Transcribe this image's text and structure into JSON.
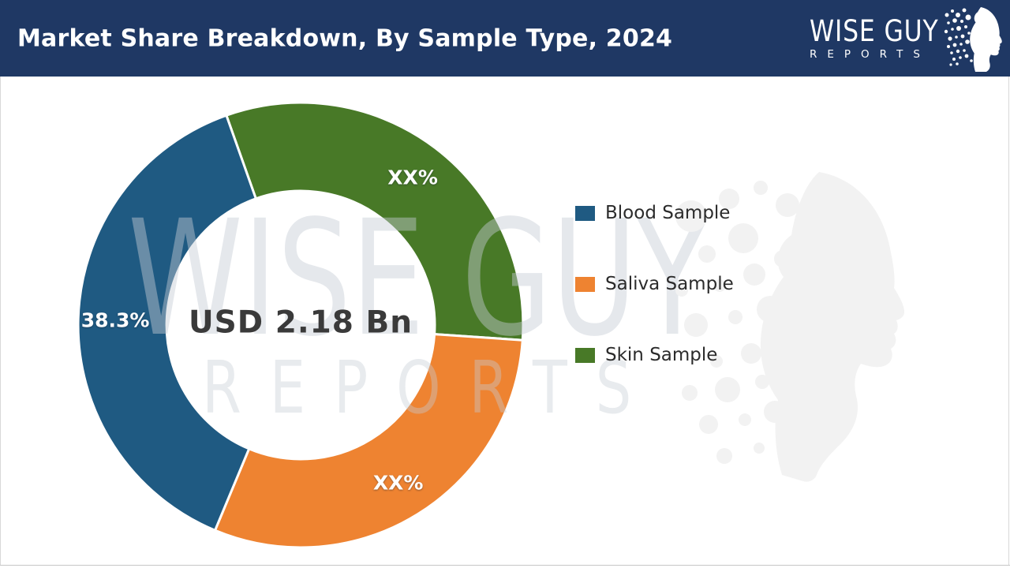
{
  "header": {
    "title": "Market Share Breakdown, By Sample Type, 2024",
    "bg_color": "#1F3864",
    "logo": {
      "line1": "WISE GUY",
      "line2": "REPORTS"
    }
  },
  "watermark": {
    "line1": "WISE GUY",
    "line2": "REPORTS"
  },
  "chart_data": {
    "type": "pie",
    "subtype": "donut",
    "title": "Market Share Breakdown, By Sample Type, 2024",
    "center_label": "USD 2.18 Bn",
    "start_angle_deg": 109.5,
    "direction": "clockwise",
    "inner_radius_ratio": 0.6,
    "legend_position": "right",
    "categories": [
      "Skin Sample",
      "Saliva Sample",
      "Blood Sample"
    ],
    "slices": [
      {
        "name": "Skin Sample",
        "label": "XX%",
        "value_pct": 31.5,
        "value_shown": false,
        "color": "#487927"
      },
      {
        "name": "Saliva Sample",
        "label": "XX%",
        "value_pct": 30.2,
        "value_shown": false,
        "color": "#EE8331"
      },
      {
        "name": "Blood Sample",
        "label": "38.3%",
        "value_pct": 38.3,
        "value_shown": true,
        "color": "#1F5A82"
      }
    ],
    "note": "Skin and Saliva shares are masked as XX% in the image; their value_pct is estimated from arc angles."
  },
  "legend": {
    "items": [
      {
        "label": "Blood Sample",
        "color": "#1F5A82"
      },
      {
        "label": "Saliva Sample",
        "color": "#EE8331"
      },
      {
        "label": "Skin Sample",
        "color": "#487927"
      }
    ]
  }
}
